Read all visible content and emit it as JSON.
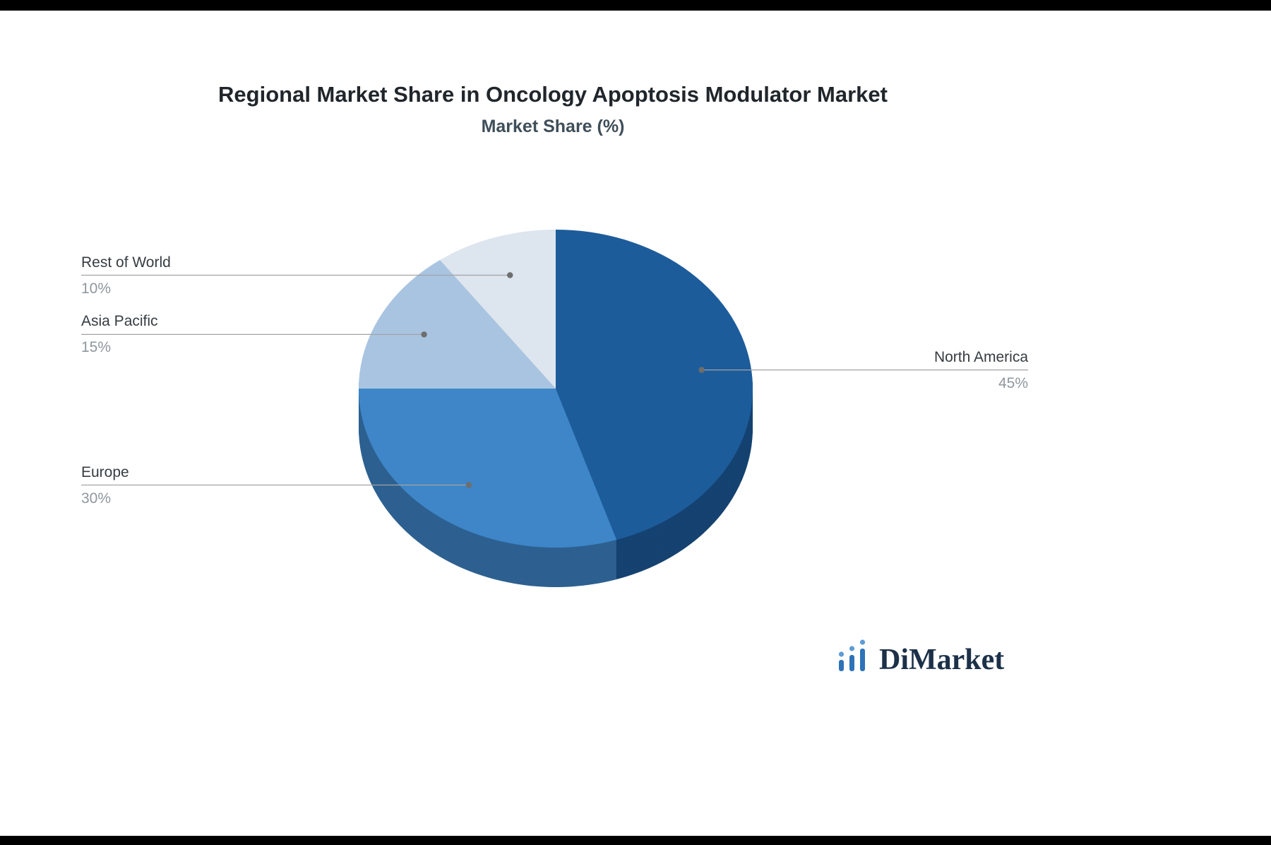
{
  "chart_data": {
    "type": "pie",
    "title": "Regional Market Share in Oncology Apoptosis Modulator Market",
    "subtitle": "Market Share (%)",
    "unit": "%",
    "effect": "3d",
    "start_angle_deg": 0,
    "direction": "clockwise",
    "labels": [
      "North America",
      "Europe",
      "Asia Pacific",
      "Rest of World"
    ],
    "values": [
      45,
      30,
      15,
      10
    ],
    "value_labels": [
      "45%",
      "30%",
      "15%",
      "10%"
    ],
    "colors": [
      "#1d5c9b",
      "#3e86c8",
      "#a9c4e1",
      "#dde5ef"
    ],
    "callout_sides": [
      "right",
      "left",
      "left",
      "left"
    ],
    "legend": "none",
    "style": {
      "title_color": "#20262b",
      "subtitle_color": "#3f4e59",
      "label_color": "#363c41",
      "value_color": "#8f979d",
      "leader_line_color": "#a3a3a3",
      "dot_color": "#6e6e6e",
      "background": "#ffffff",
      "frame_bar_color": "#000000"
    }
  },
  "brand": {
    "name": "DiMarket",
    "icon": "bar-chart-icon",
    "color": "#1c3048",
    "icon_color": "#2e73b8",
    "icon_dot_color": "#5e9bd6"
  }
}
